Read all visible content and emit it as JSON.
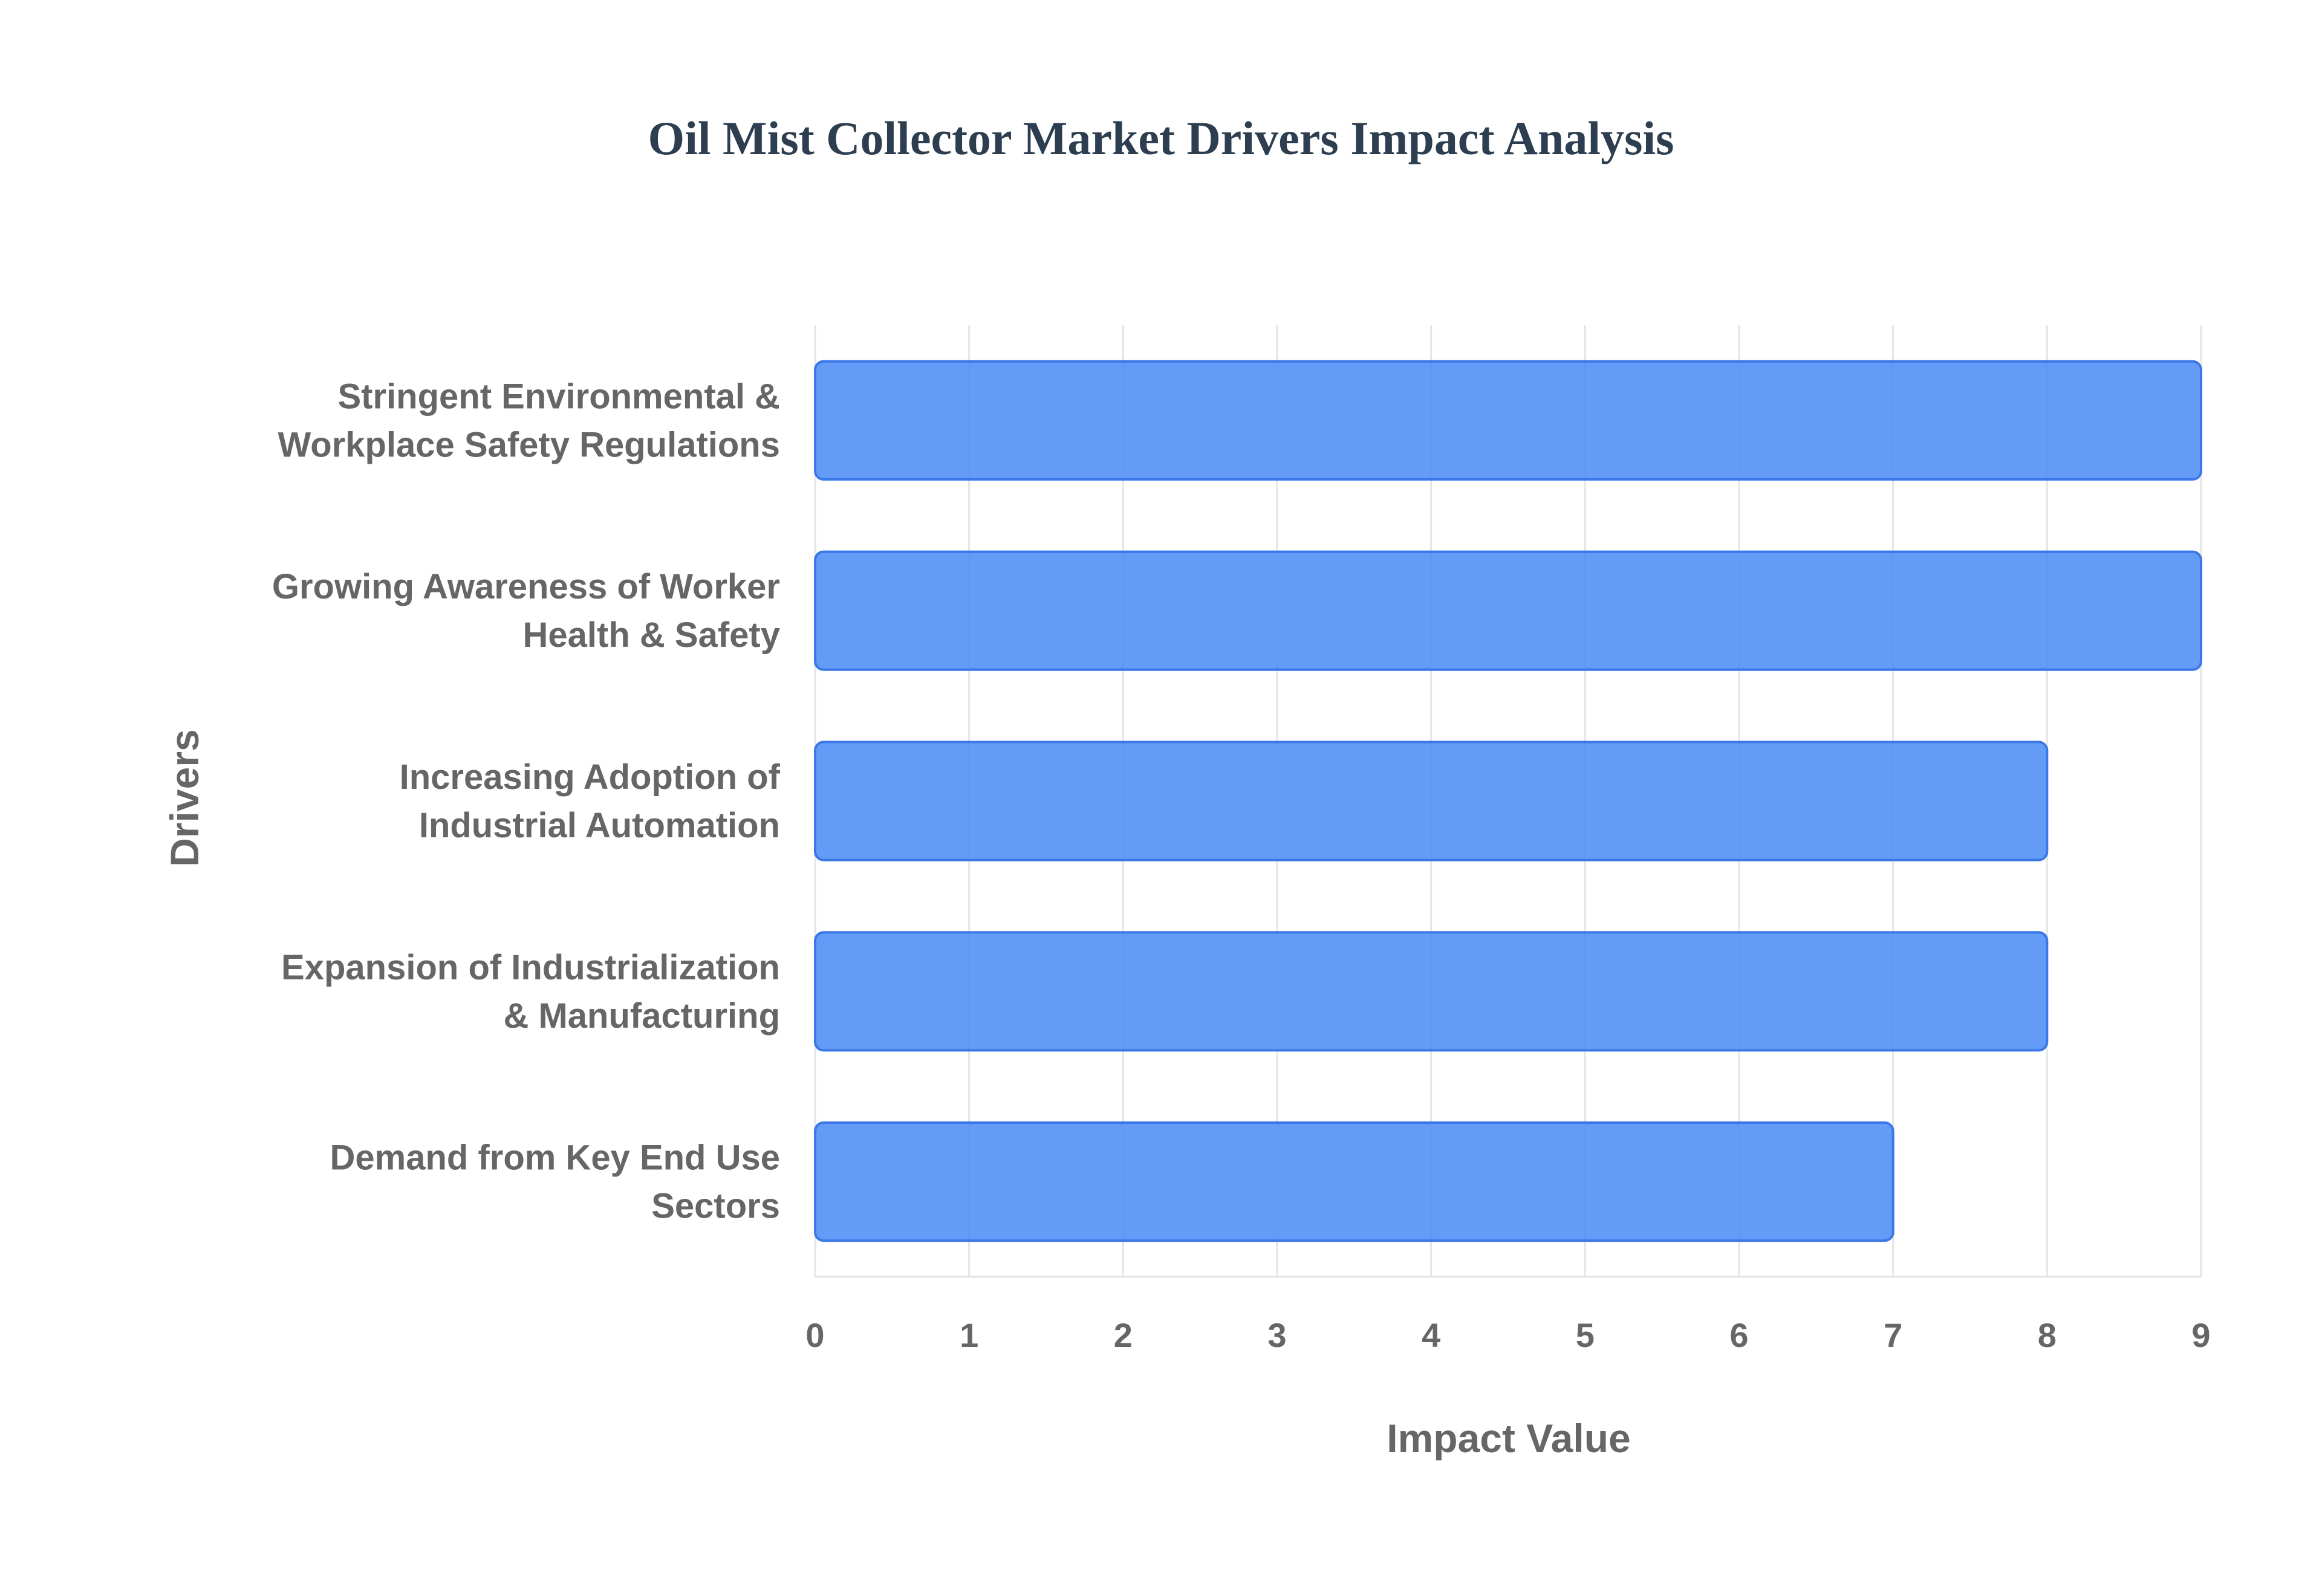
{
  "chart_data": {
    "type": "bar",
    "orientation": "horizontal",
    "title": "Oil Mist Collector Market Drivers Impact Analysis",
    "xlabel": "Impact Value",
    "ylabel": "Drivers",
    "categories": [
      [
        "Stringent Environmental &",
        "Workplace Safety Regulations"
      ],
      [
        "Growing Awareness of Worker",
        "Health & Safety"
      ],
      [
        "Increasing Adoption of",
        "Industrial Automation"
      ],
      [
        "Expansion of Industrialization",
        "& Manufacturing"
      ],
      [
        "Demand from Key End Use",
        "Sectors"
      ]
    ],
    "values": [
      9,
      9,
      8,
      8,
      7
    ],
    "xlim": [
      0,
      9
    ],
    "xticks": [
      "0",
      "1",
      "2",
      "3",
      "4",
      "5",
      "6",
      "7",
      "8",
      "9"
    ],
    "grid": true,
    "legend": "none",
    "colors": {
      "bar_fill": "#4f8df5",
      "bar_stroke": "#3b78e7",
      "grid": "#e5e5e5",
      "title": "#2c3e50",
      "label": "#666666"
    }
  }
}
